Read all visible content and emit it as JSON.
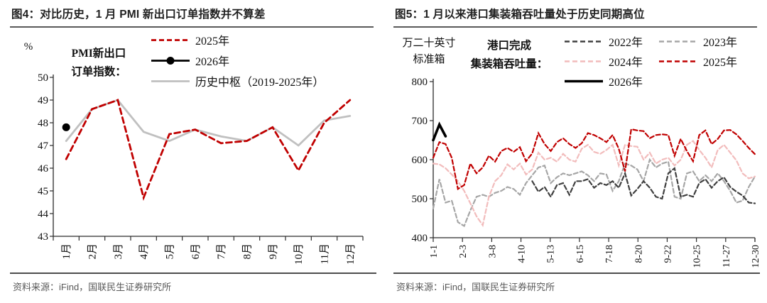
{
  "theme": {
    "title_color": "#1f1f1f",
    "rule_color": "#5a5a5a",
    "source_color": "#595959",
    "axis_color": "#2b2b2b"
  },
  "chart_data": [
    {
      "type": "line",
      "title": "图4：对比历史，1 月 PMI 新出口订单指数并不算差",
      "ylabel_lines": [
        "%"
      ],
      "series_caption_lines": [
        "PMI新出口",
        "订单指数："
      ],
      "source": "资料来源：iFind，国联民生证券研究所",
      "ylim": [
        43,
        50
      ],
      "yticks": [
        50,
        49,
        48,
        47,
        46,
        45,
        44,
        43
      ],
      "grid": false,
      "legend_position": "top",
      "categories": [
        "1月",
        "2月",
        "3月",
        "4月",
        "5月",
        "6月",
        "7月",
        "8月",
        "9月",
        "10月",
        "11月",
        "12月"
      ],
      "series": [
        {
          "name": "2025年",
          "color": "#c00000",
          "style": "dashed",
          "dash": "8 5",
          "width": 2.8,
          "marker": false,
          "z": 2,
          "values": [
            46.4,
            48.6,
            49.0,
            44.7,
            47.5,
            47.7,
            47.1,
            47.2,
            47.8,
            45.9,
            48.0,
            49.0
          ]
        },
        {
          "name": "2026年",
          "color": "#000000",
          "style": "solid",
          "dash": "",
          "width": 2.8,
          "marker": true,
          "z": 3,
          "values": [
            47.8
          ]
        },
        {
          "name": "历史中枢（2019-2025年）",
          "color": "#c0c0c0",
          "style": "solid",
          "dash": "",
          "width": 2.8,
          "marker": false,
          "z": 1,
          "values": [
            47.2,
            48.6,
            49.0,
            47.6,
            47.2,
            47.7,
            47.4,
            47.2,
            47.8,
            47.0,
            48.1,
            48.3
          ]
        }
      ]
    },
    {
      "type": "line",
      "title": "图5：1 月以来港口集装箱吞吐量处于历史同期高位",
      "ylabel_lines": [
        "万二十英寸",
        "标准箱"
      ],
      "series_caption_lines": [
        "港口完成",
        "集装箱吞吐量："
      ],
      "source": "资料来源：iFind，国联民生证券研究所",
      "ylim": [
        400,
        800
      ],
      "yticks": [
        800,
        700,
        600,
        500,
        400
      ],
      "grid": false,
      "legend_position": "top",
      "categories": [
        "1-1",
        "2-3",
        "3-8",
        "4-10",
        "5-13",
        "6-15",
        "7-18",
        "8-20",
        "9-22",
        "10-25",
        "11-27",
        "12-30"
      ],
      "series": [
        {
          "name": "2022年",
          "color": "#3f3f3f",
          "style": "dashed",
          "dash": "6 3.5",
          "width": 2.2,
          "marker": false,
          "z": 2,
          "values": [
            null,
            null,
            null,
            null,
            null,
            null,
            null,
            null,
            null,
            null,
            null,
            null,
            null,
            null,
            null,
            null,
            545,
            518,
            530,
            505,
            535,
            540,
            510,
            545,
            545,
            550,
            528,
            540,
            535,
            545,
            528,
            565,
            508,
            525,
            545,
            528,
            505,
            500,
            565,
            578,
            505,
            510,
            505,
            540,
            550,
            528,
            545,
            555,
            530,
            518,
            508,
            490,
            488
          ]
        },
        {
          "name": "2023年",
          "color": "#a6a6a6",
          "style": "dashed",
          "dash": "6 3.5",
          "width": 2.2,
          "marker": false,
          "z": 1,
          "values": [
            475,
            550,
            490,
            495,
            440,
            430,
            470,
            505,
            510,
            505,
            515,
            520,
            530,
            525,
            510,
            540,
            560,
            580,
            585,
            540,
            555,
            565,
            560,
            565,
            570,
            560,
            545,
            565,
            562,
            520,
            545,
            590,
            585,
            575,
            545,
            600,
            580,
            590,
            595,
            505,
            500,
            565,
            570,
            545,
            560,
            545,
            565,
            545,
            520,
            490,
            495,
            530,
            557
          ]
        },
        {
          "name": "2024年",
          "color": "#f2bcbc",
          "style": "dashed",
          "dash": "6 3.5",
          "width": 2.2,
          "marker": false,
          "z": 3,
          "values": [
            590,
            588,
            578,
            562,
            545,
            520,
            488,
            455,
            432,
            505,
            545,
            560,
            588,
            575,
            590,
            562,
            575,
            618,
            600,
            605,
            595,
            615,
            600,
            595,
            628,
            638,
            620,
            615,
            625,
            638,
            585,
            638,
            635,
            633,
            600,
            618,
            590,
            600,
            605,
            585,
            600,
            638,
            648,
            625,
            605,
            580,
            625,
            638,
            618,
            598,
            565,
            552,
            557
          ]
        },
        {
          "name": "2025年",
          "color": "#c00000",
          "style": "dashed",
          "dash": "6 3.5",
          "width": 2.2,
          "marker": false,
          "z": 4,
          "values": [
            605,
            645,
            640,
            605,
            525,
            535,
            590,
            565,
            580,
            610,
            595,
            622,
            630,
            620,
            632,
            596,
            616,
            668,
            640,
            622,
            645,
            655,
            640,
            630,
            642,
            668,
            663,
            655,
            645,
            663,
            628,
            570,
            678,
            675,
            673,
            655,
            663,
            665,
            663,
            610,
            653,
            622,
            596,
            663,
            675,
            640,
            653,
            675,
            676,
            665,
            648,
            630,
            614
          ]
        },
        {
          "name": "2026年",
          "color": "#000000",
          "style": "solid",
          "dash": "",
          "width": 3.6,
          "marker": false,
          "z": 5,
          "values": [
            650,
            690,
            660
          ]
        }
      ]
    }
  ]
}
